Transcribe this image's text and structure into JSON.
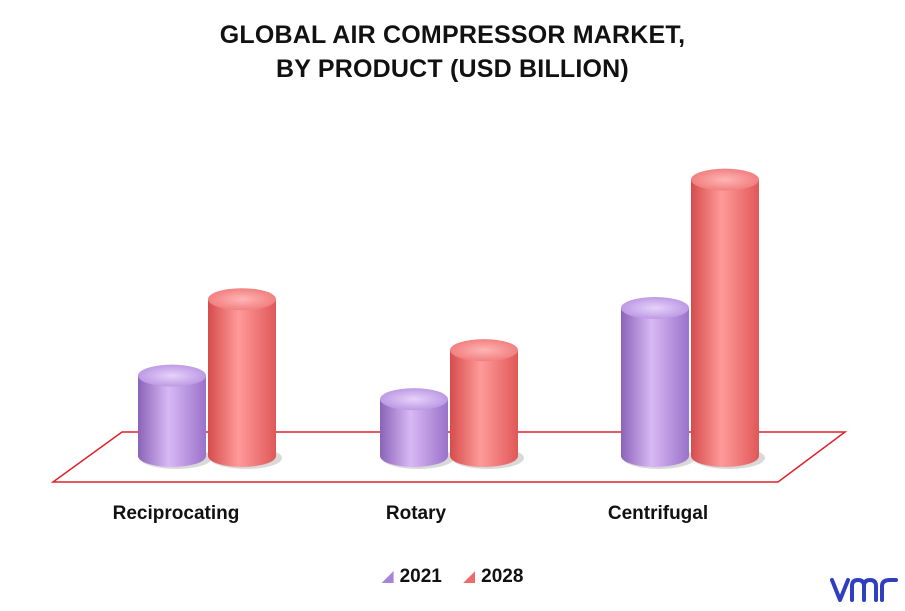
{
  "chart_data": {
    "type": "bar",
    "title_line1": "GLOBAL AIR COMPRESSOR MARKET,",
    "title_line2": "BY PRODUCT (USD BILLION)",
    "categories": [
      "Reciprocating",
      "Rotary",
      "Centrifugal"
    ],
    "series": [
      {
        "name": "2021",
        "values": [
          8.2,
          5.8,
          15.1
        ],
        "color": "#b98fe6"
      },
      {
        "name": "2028",
        "values": [
          16.0,
          10.8,
          28.2
        ],
        "color": "#f26c6c"
      }
    ],
    "ylim": [
      0,
      30
    ],
    "grid": false,
    "legend_position": "bottom",
    "floor_color": "#e0202a"
  },
  "brand": {
    "logo_text": "vmr",
    "color": "#2f3fbf"
  }
}
